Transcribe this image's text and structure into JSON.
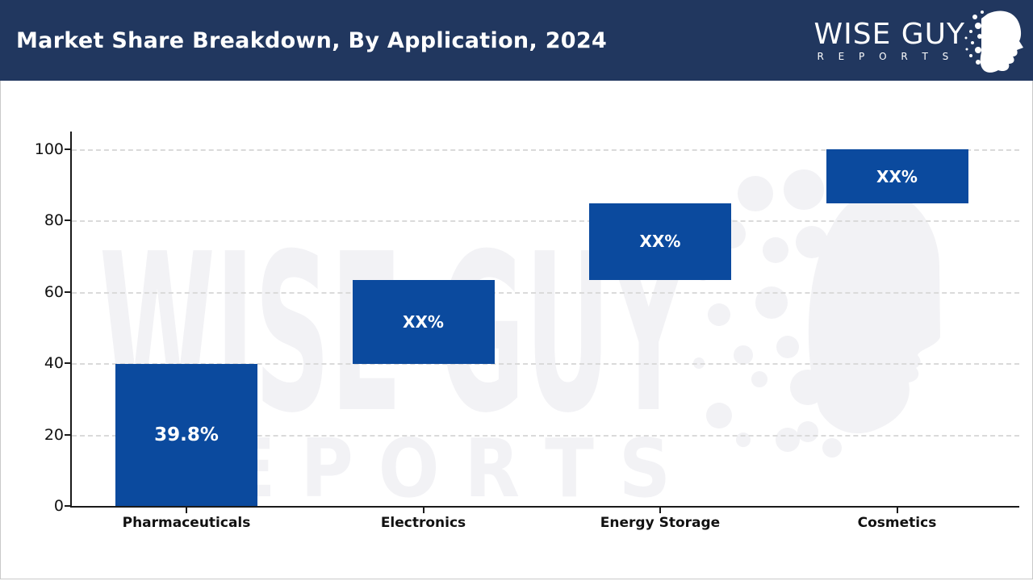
{
  "header": {
    "title": "Market Share Breakdown, By Application, 2024",
    "bg_color": "#21375f",
    "logo": {
      "name": "Wise Guy Reports",
      "line1": "WISE GUY",
      "line2": "R E P O R T S"
    }
  },
  "watermark": {
    "line1": "WISE GUY",
    "line2": "R E P O R T S"
  },
  "chart_data": {
    "type": "bar",
    "subtype": "waterfall-stacked-breakdown",
    "title": "Market Share Breakdown, By Application, 2024",
    "categories": [
      "Pharmaceuticals",
      "Electronics",
      "Energy Storage",
      "Cosmetics"
    ],
    "segments": [
      {
        "category": "Pharmaceuticals",
        "start": 0,
        "end": 39.8,
        "label": "39.8%"
      },
      {
        "category": "Electronics",
        "start": 39.8,
        "end": 63.4,
        "label": "XX%"
      },
      {
        "category": "Energy Storage",
        "start": 63.4,
        "end": 84.8,
        "label": "XX%"
      },
      {
        "category": "Cosmetics",
        "start": 84.8,
        "end": 100,
        "label": "XX%"
      }
    ],
    "yticks": [
      0,
      20,
      40,
      60,
      80,
      100
    ],
    "ylim": [
      0,
      105
    ],
    "xlabel": "",
    "ylabel": "",
    "bar_color": "#0b4a9e",
    "label_color": "#ffffff",
    "grid": "horizontal-dashed",
    "legend": "none"
  }
}
